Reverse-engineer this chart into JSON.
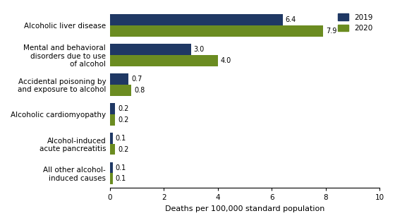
{
  "categories": [
    "Alcoholic liver disease",
    "Mental and behavioral\ndisorders due to use\nof alcohol",
    "Accidental poisoning by\nand exposure to alcohol",
    "Alcoholic cardiomyopathy",
    "Alcohol-induced\nacute pancreatitis",
    "All other alcohol-\ninduced causes"
  ],
  "values_2019": [
    6.4,
    3.0,
    0.7,
    0.2,
    0.1,
    0.1
  ],
  "values_2020": [
    7.9,
    4.0,
    0.8,
    0.2,
    0.2,
    0.1
  ],
  "labels_2019": [
    "6.4",
    "3.0",
    "0.7",
    "0.2",
    "0.1",
    "0.1"
  ],
  "labels_2020": [
    "7.9",
    "4.0",
    "0.8",
    "0.2",
    "0.2",
    "0.1"
  ],
  "color_2019": "#1f3864",
  "color_2020": "#6b8c21",
  "xlabel": "Deaths per 100,000 standard population",
  "xlim": [
    0,
    10
  ],
  "xticks": [
    0,
    2,
    4,
    6,
    8,
    10
  ],
  "legend_labels": [
    "2019",
    "2020"
  ],
  "bar_height": 0.38,
  "label_fontsize": 7.0,
  "axis_fontsize": 8,
  "tick_fontsize": 7.5
}
